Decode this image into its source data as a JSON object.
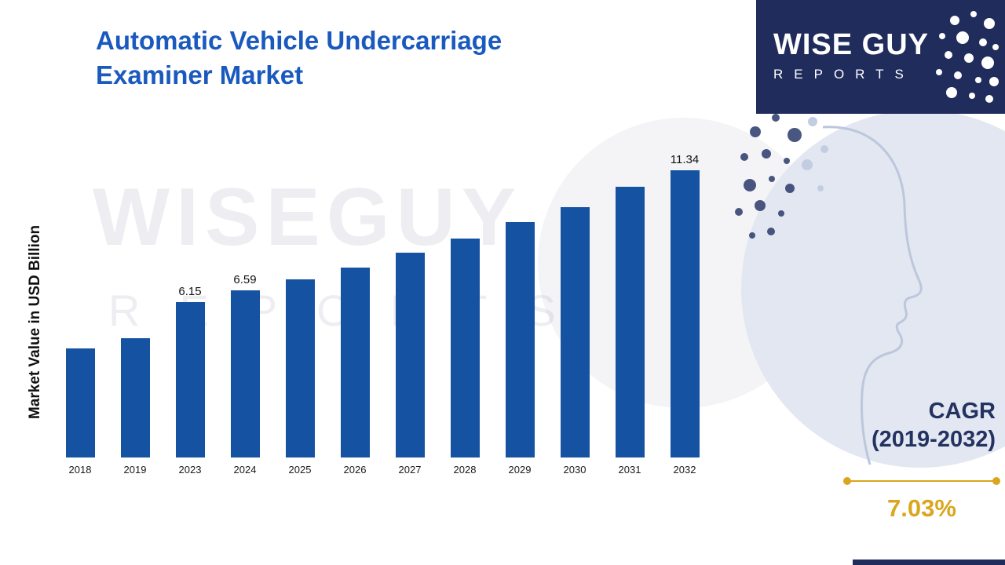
{
  "header": {
    "title_line1": "Automatic Vehicle Undercarriage",
    "title_line2": "Examiner Market"
  },
  "brand": {
    "name": "WISE GUY",
    "sub": "REPORTS"
  },
  "watermark": {
    "line1": "WISEGUY",
    "line2": "REPORTS"
  },
  "cagr": {
    "label": "CAGR",
    "range": "(2019-2032)",
    "value": "7.03%"
  },
  "colors": {
    "bar": "#1652a2",
    "title": "#1a5abe",
    "panel": "#202c5c",
    "gold": "#d9a61d"
  },
  "chart_data": {
    "type": "bar",
    "title": "Automatic Vehicle Undercarriage Examiner Market",
    "xlabel": "",
    "ylabel": "Market Value in USD Billion",
    "units": "USD Billion",
    "categories": [
      "2018",
      "2019",
      "2023",
      "2024",
      "2025",
      "2026",
      "2027",
      "2028",
      "2029",
      "2030",
      "2031",
      "2032"
    ],
    "values": [
      4.3,
      4.7,
      6.15,
      6.59,
      7.05,
      7.5,
      8.1,
      8.65,
      9.3,
      9.9,
      10.7,
      11.34
    ],
    "value_labels": [
      "",
      "",
      "6.15",
      "6.59",
      "",
      "",
      "",
      "",
      "",
      "",
      "",
      "11.34"
    ],
    "ylim": [
      0,
      12
    ],
    "grid": false,
    "legend": false
  }
}
